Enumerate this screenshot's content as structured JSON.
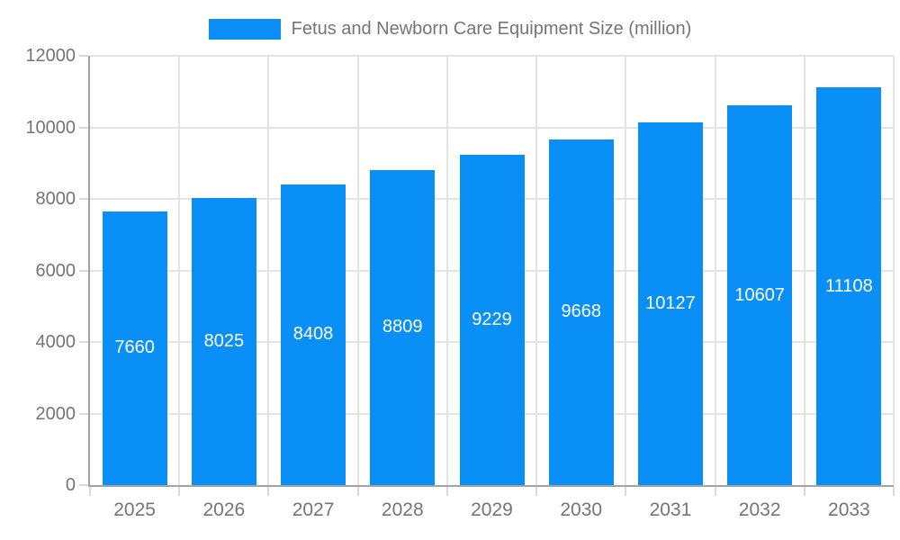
{
  "legend": {
    "label": "Fetus and Newborn Care Equipment Size (million)"
  },
  "chart_data": {
    "type": "bar",
    "title": "Fetus and Newborn Care Equipment Size (million)",
    "series_name": "Fetus and Newborn Care Equipment Size (million)",
    "categories": [
      "2025",
      "2026",
      "2027",
      "2028",
      "2029",
      "2030",
      "2031",
      "2032",
      "2033"
    ],
    "values": [
      7660,
      8025,
      8408,
      8809,
      9229,
      9668,
      10127,
      10607,
      11108
    ],
    "xlabel": "",
    "ylabel": "",
    "ylim": [
      0,
      12000
    ],
    "yticks": [
      0,
      2000,
      4000,
      6000,
      8000,
      10000,
      12000
    ],
    "grid": true,
    "legend_position": "top",
    "bar_color": "#0a8ff7",
    "value_label_color": "#ffffff",
    "axis_text_color": "#757575",
    "grid_color": "#e4e4e4",
    "axis_line_color": "#a3a3a3"
  }
}
